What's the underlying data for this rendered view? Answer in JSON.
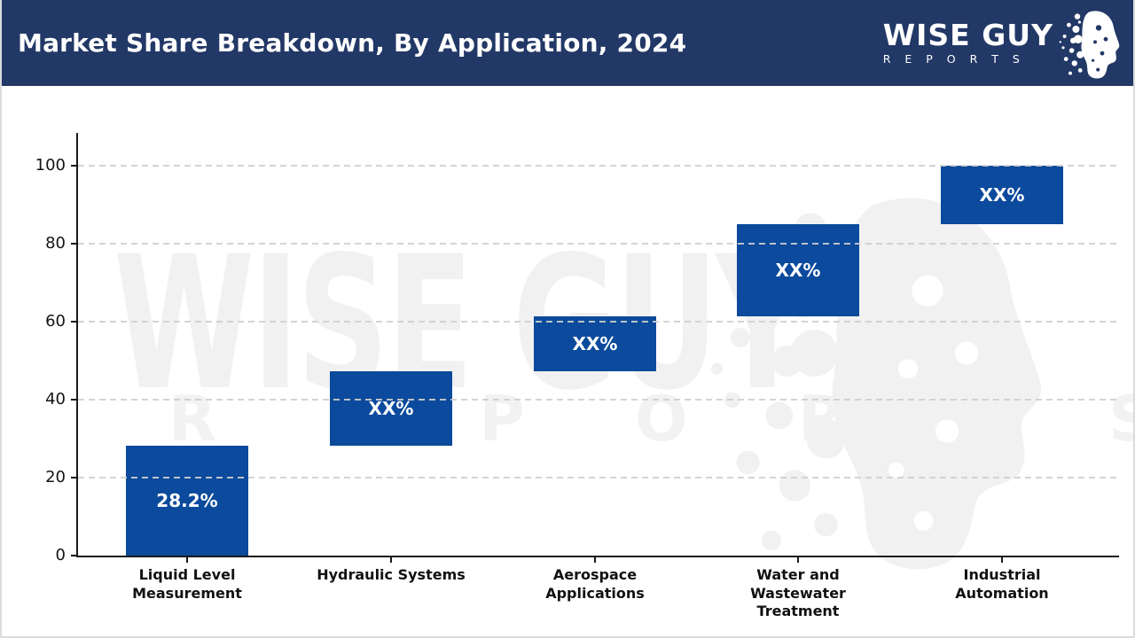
{
  "header": {
    "title": "Market Share Breakdown, By Application, 2024",
    "logo_line1": "WISE GUY",
    "logo_line2": "R E P O R T S"
  },
  "watermark": {
    "line1": "WISE GUY",
    "line2": "R E P O R T S"
  },
  "colors": {
    "header_bg": "#223866",
    "bar": "#0b4a9c",
    "axis": "#1a1a1a",
    "grid": "#cfcfcf",
    "bar_label": "#ffffff",
    "watermark": "#f1f1f1"
  },
  "chart_data": {
    "type": "bar",
    "variant": "waterfall",
    "title": "Market Share Breakdown, By Application, 2024",
    "xlabel": "",
    "ylabel": "",
    "ylim": [
      0,
      108
    ],
    "yticks": [
      0,
      20,
      40,
      60,
      80,
      100
    ],
    "grid": "horizontal-dashed",
    "legend": "none",
    "categories": [
      "Liquid Level Measurement",
      "Hydraulic Systems",
      "Aerospace Applications",
      "Water and Wastewater Treatment",
      "Industrial Automation"
    ],
    "category_lines": [
      [
        "Liquid Level",
        "Measurement"
      ],
      [
        "Hydraulic Systems"
      ],
      [
        "Aerospace",
        "Applications"
      ],
      [
        "Water and",
        "Wastewater",
        "Treatment"
      ],
      [
        "Industrial",
        "Automation"
      ]
    ],
    "values": [
      28.2,
      19.0,
      14.1,
      23.7,
      15.0
    ],
    "segments": [
      {
        "category": "Liquid Level Measurement",
        "start": 0,
        "end": 28.2,
        "label": "28.2%"
      },
      {
        "category": "Hydraulic Systems",
        "start": 28.2,
        "end": 47.2,
        "label": "XX%"
      },
      {
        "category": "Aerospace Applications",
        "start": 47.2,
        "end": 61.3,
        "label": "XX%"
      },
      {
        "category": "Water and Wastewater Treatment",
        "start": 61.3,
        "end": 85.0,
        "label": "XX%"
      },
      {
        "category": "Industrial Automation",
        "start": 85.0,
        "end": 100.0,
        "label": "XX%"
      }
    ]
  }
}
